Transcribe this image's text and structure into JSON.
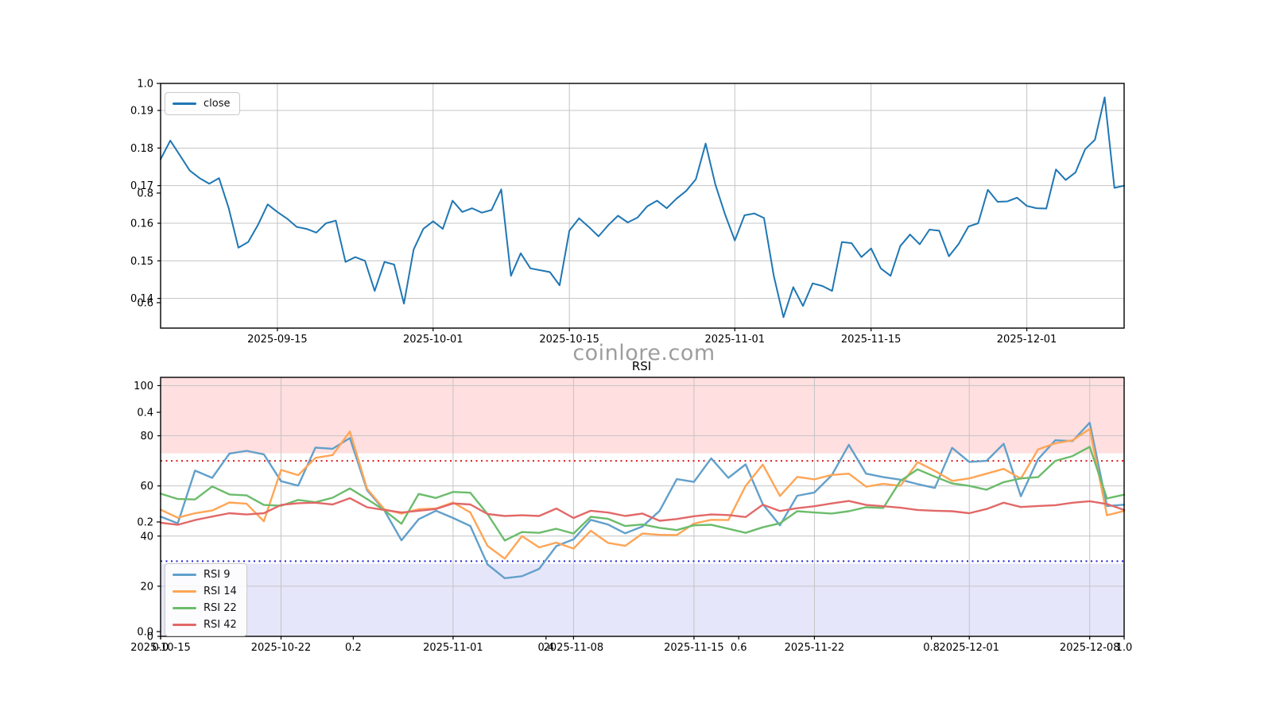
{
  "watermark": "coinlore.com",
  "overlay_axis": {
    "x_tick_labels": [
      "0.0",
      "0.2",
      "0.4",
      "0.6",
      "0.8",
      "1.0"
    ],
    "y_tick_labels": [
      "1.0",
      "0.8",
      "0.6",
      "0.4",
      "0.2",
      "0.0"
    ]
  },
  "chart_data": [
    {
      "type": "line",
      "panel": "price",
      "title": "",
      "xlabel": "",
      "ylabel": "",
      "start_date": "2025-09-03",
      "end_date": "2025-12-11",
      "x_tick_labels": [
        "2025-09-15",
        "2025-10-01",
        "2025-10-15",
        "2025-11-01",
        "2025-11-15",
        "2025-12-01"
      ],
      "x_tick_days": [
        12,
        28,
        42,
        59,
        73,
        89
      ],
      "y_tick_labels": [
        "0.19",
        "0.18",
        "0.17",
        "0.16",
        "0.15",
        "0.14"
      ],
      "y_tick_values": [
        0.19,
        0.18,
        0.17,
        0.16,
        0.15,
        0.14
      ],
      "ylim": [
        0.1321,
        0.19719
      ],
      "grid": true,
      "legend_position": "upper-left",
      "series": [
        {
          "name": "close",
          "color": "#1f77b4",
          "values": [
            0.177,
            0.182,
            0.178,
            0.174,
            0.172,
            0.1705,
            0.172,
            0.164,
            0.1535,
            0.155,
            0.1595,
            0.165,
            0.163,
            0.1612,
            0.159,
            0.1585,
            0.1575,
            0.16,
            0.1607,
            0.1497,
            0.151,
            0.15,
            0.142,
            0.1497,
            0.149,
            0.1386,
            0.153,
            0.1585,
            0.1605,
            0.1585,
            0.166,
            0.163,
            0.164,
            0.1628,
            0.1635,
            0.169,
            0.146,
            0.152,
            0.148,
            0.1475,
            0.147,
            0.1435,
            0.158,
            0.1613,
            0.159,
            0.1565,
            0.1595,
            0.162,
            0.1602,
            0.1615,
            0.1645,
            0.166,
            0.164,
            0.1665,
            0.1686,
            0.1717,
            0.1812,
            0.1703,
            0.1623,
            0.1554,
            0.1621,
            0.1626,
            0.1614,
            0.146,
            0.135,
            0.143,
            0.138,
            0.144,
            0.1433,
            0.142,
            0.155,
            0.1547,
            0.151,
            0.1533,
            0.148,
            0.146,
            0.1539,
            0.157,
            0.1544,
            0.1583,
            0.158,
            0.1512,
            0.1545,
            0.1591,
            0.16,
            0.1689,
            0.1657,
            0.1658,
            0.1668,
            0.1646,
            0.164,
            0.1639,
            0.1743,
            0.1715,
            0.1735,
            0.1797,
            0.1822,
            0.1935,
            0.1694,
            0.17
          ]
        }
      ]
    },
    {
      "type": "line",
      "panel": "rsi",
      "title": "RSI",
      "xlabel": "",
      "ylabel": "",
      "start_date": "2025-10-15",
      "end_date": "2025-12-10",
      "x_tick_labels": [
        "2025-10-15",
        "2025-10-22",
        "2025-11-01",
        "2025-11-08",
        "2025-11-15",
        "2025-11-22",
        "2025-12-01",
        "2025-12-08"
      ],
      "x_tick_days": [
        0,
        7,
        17,
        24,
        31,
        38,
        47,
        54
      ],
      "y_tick_labels": [
        "100",
        "80",
        "60",
        "40",
        "20",
        "0"
      ],
      "y_tick_values": [
        100,
        80,
        60,
        40,
        20,
        0
      ],
      "ylim": [
        0,
        103.3
      ],
      "grid": true,
      "legend_position": "lower-left",
      "hlines": [
        {
          "name": "overbought-line",
          "value": 70,
          "color": "#e01919",
          "style": "dotted"
        },
        {
          "name": "oversold-line",
          "value": 30,
          "color": "#2222cc",
          "style": "dotted"
        }
      ],
      "bands": [
        {
          "name": "overbought-zone",
          "from": 73,
          "to": 103.3,
          "color": "rgba(255,80,80,0.18)"
        },
        {
          "name": "oversold-zone",
          "from": 0,
          "to": 29,
          "color": "rgba(105,105,225,0.17)"
        }
      ],
      "series": [
        {
          "name": "RSI 9",
          "color": "#62a0ca",
          "values": [
            47.8,
            45.1,
            66.1,
            63.2,
            72.9,
            74,
            72.6,
            61.9,
            60.1,
            75.3,
            74.8,
            79.1,
            58.3,
            50.3,
            38.3,
            46.7,
            50.1,
            47.2,
            44,
            28.7,
            23.2,
            24,
            26.9,
            36,
            38.7,
            46.5,
            44.6,
            41.1,
            43.8,
            50,
            62.7,
            61.6,
            71,
            63.2,
            68.6,
            52.7,
            44.3,
            56.1,
            57.4,
            64.2,
            76.4,
            64.9,
            63.5,
            62.5,
            60.7,
            59.2,
            75.2,
            69.6,
            70,
            76.8,
            55.9,
            70.7,
            78.2,
            77.9,
            85.2,
            52,
            52.5
          ]
        },
        {
          "name": "RSI 14",
          "color": "#ffa556",
          "values": [
            50.5,
            47.3,
            49.1,
            50.2,
            53.4,
            52.9,
            45.9,
            66.4,
            64.3,
            71.2,
            72.3,
            81.7,
            58.9,
            50.7,
            49,
            50.7,
            51,
            53.4,
            49.4,
            36.1,
            31,
            40,
            35.5,
            37.4,
            35,
            42.1,
            37.3,
            36.1,
            41,
            40.5,
            40.4,
            45,
            46.5,
            46.4,
            60,
            68.5,
            56,
            63.6,
            62.6,
            64.4,
            64.9,
            59.7,
            60.8,
            60,
            69.5,
            66,
            62,
            63,
            64.9,
            66.8,
            62.9,
            74.6,
            77,
            78.2,
            82.7,
            48.3,
            50
          ]
        },
        {
          "name": "RSI 22",
          "color": "#6bbc6b",
          "values": [
            56.9,
            54.8,
            54.6,
            59.8,
            56.6,
            56.2,
            52.4,
            52.1,
            54.4,
            53.5,
            55.3,
            59,
            54.8,
            50.3,
            44.9,
            56.8,
            55.2,
            57.6,
            57.3,
            48.8,
            38.2,
            41.6,
            41.3,
            42.9,
            41,
            47.7,
            46.9,
            44,
            44.6,
            43.3,
            42.4,
            44.3,
            44.5,
            42.9,
            41.3,
            43.5,
            45.1,
            49.9,
            49.4,
            49,
            49.9,
            51.5,
            51.2,
            62,
            66.6,
            63.7,
            61,
            60,
            58.5,
            61.5,
            63,
            63.5,
            70,
            71.9,
            75.6,
            55,
            56.5
          ]
        },
        {
          "name": "RSI 42",
          "color": "#e26868",
          "values": [
            45.3,
            44.5,
            46.4,
            47.8,
            49.1,
            48.6,
            49.1,
            52.4,
            53.1,
            53.3,
            52.6,
            55.1,
            51.5,
            50.4,
            49.4,
            50.1,
            50.8,
            53,
            52.6,
            48.8,
            48,
            48.3,
            48,
            51,
            47.2,
            50.1,
            49.4,
            48,
            49,
            46.1,
            46.8,
            47.9,
            48.6,
            48.4,
            47.6,
            52.5,
            50,
            51.1,
            51.9,
            53,
            54,
            52.4,
            51.9,
            51.3,
            50.4,
            50.1,
            49.9,
            49.1,
            50.8,
            53.3,
            51.6,
            52,
            52.3,
            53.3,
            53.9,
            52.8,
            50.4
          ]
        }
      ]
    }
  ]
}
